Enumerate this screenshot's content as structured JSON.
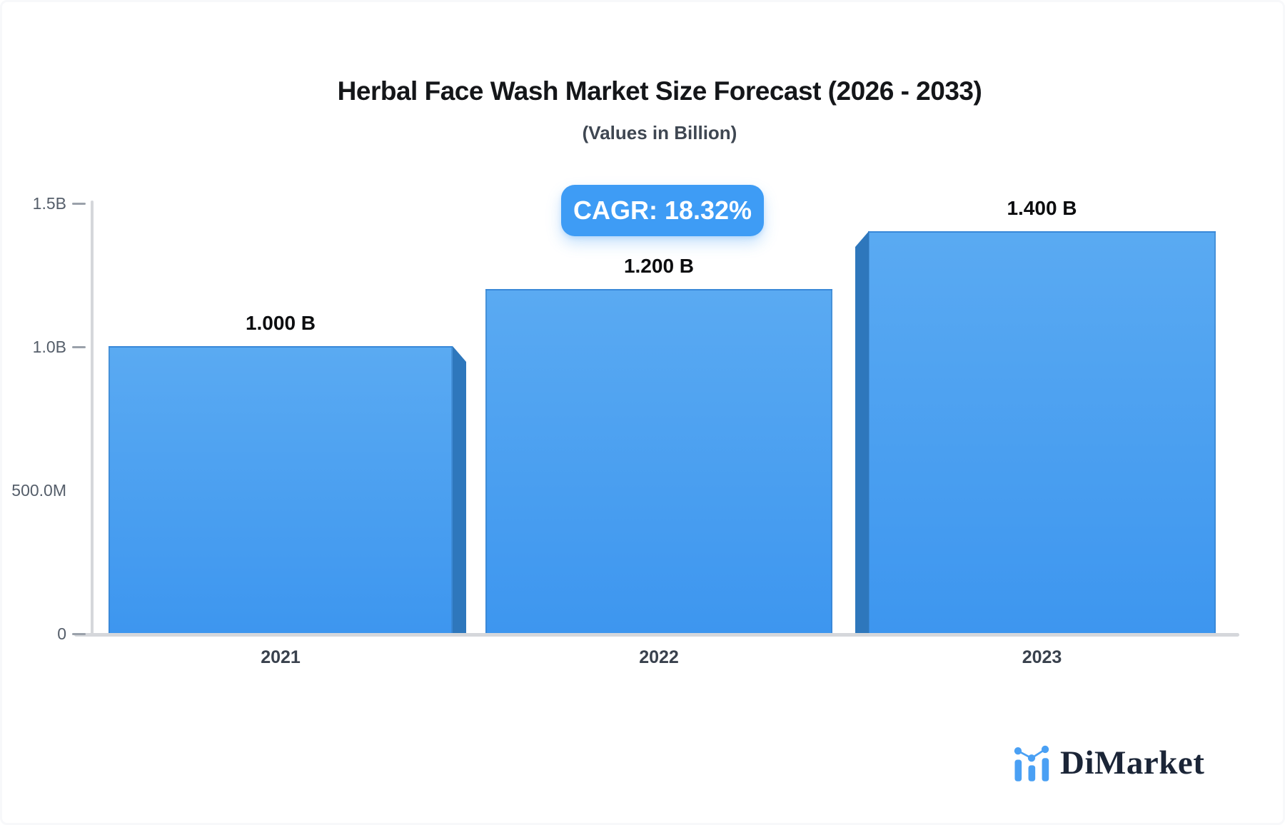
{
  "header": {
    "title": "Herbal Face Wash Market Size Forecast (2026 - 2033)",
    "subtitle": "(Values in Billion)",
    "cagr_label": "CAGR: 18.32%"
  },
  "chart_data": {
    "type": "bar",
    "title": "Herbal Face Wash Market Size Forecast (2026 - 2033)",
    "subtitle": "(Values in Billion)",
    "annotation": "CAGR: 18.32%",
    "categories": [
      "2021",
      "2022",
      "2023"
    ],
    "values": [
      1.0,
      1.2,
      1.4
    ],
    "unit": "Billion",
    "value_labels": [
      "1.000 B",
      "1.200 B",
      "1.400 B"
    ],
    "xlabel": "",
    "ylabel": "",
    "ylim": [
      0,
      1.5
    ],
    "yticks": [
      {
        "label": "1.5B",
        "value": 1.5
      },
      {
        "label": "1.0B",
        "value": 1.0
      },
      {
        "label": "500.0M",
        "value": 0.5
      },
      {
        "label": "0",
        "value": 0.0
      }
    ],
    "grid": false,
    "legend": false,
    "colors": {
      "bar_gradient_top": "#5aaaf2",
      "bar_gradient_bottom": "#3d96ef",
      "bar_3d_side": "#2e77bc",
      "badge_background": "#3e9cf5",
      "axis_line": "#d5d7db",
      "tick_label": "#555e6a"
    }
  },
  "branding": {
    "logo_text": "DiMarket",
    "logo_icon": "bar-chart-logo-icon",
    "logo_icon_color": "#4aa0f4",
    "logo_text_color": "#1b2537"
  }
}
